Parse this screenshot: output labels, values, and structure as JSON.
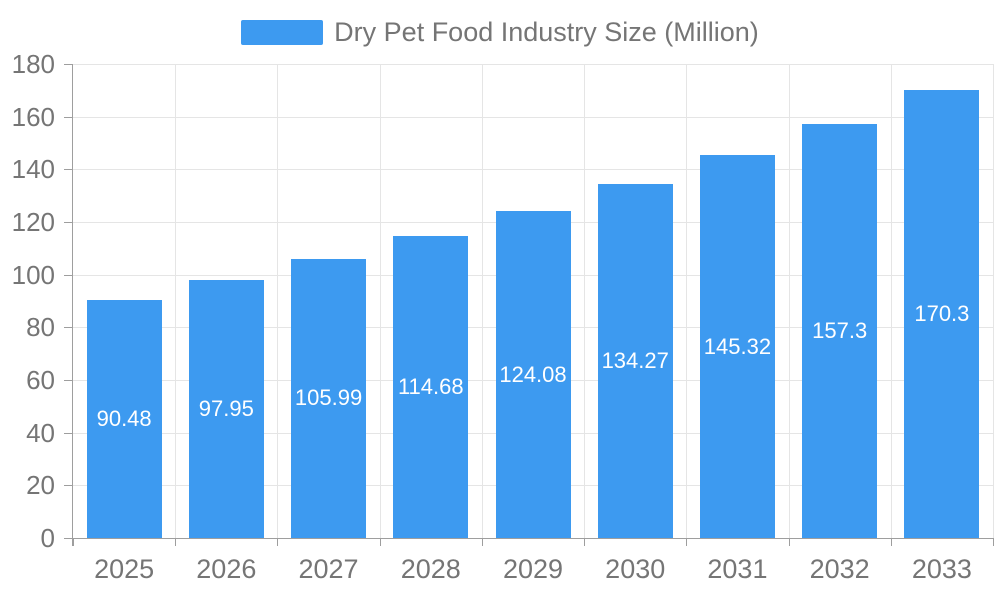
{
  "legend": {
    "label": "Dry Pet Food Industry Size (Million)"
  },
  "chart_data": {
    "type": "bar",
    "title": "Dry Pet Food Industry Size (Million)",
    "series_name": "Dry Pet Food Industry Size (Million)",
    "categories": [
      "2025",
      "2026",
      "2027",
      "2028",
      "2029",
      "2030",
      "2031",
      "2032",
      "2033"
    ],
    "values": [
      90.48,
      97.95,
      105.99,
      114.68,
      124.08,
      134.27,
      145.32,
      157.3,
      170.3
    ],
    "value_labels": [
      "90.48",
      "97.95",
      "105.99",
      "114.68",
      "124.08",
      "134.27",
      "145.32",
      "157.3",
      "170.3"
    ],
    "xlabel": "",
    "ylabel": "",
    "ylim": [
      0,
      180
    ],
    "y_ticks": [
      "0",
      "20",
      "40",
      "60",
      "80",
      "100",
      "120",
      "140",
      "160",
      "180"
    ],
    "grid": true,
    "legend_position": "top"
  },
  "colors": {
    "bar": "#3D9AF0",
    "grid": "#E5E5E5",
    "axis": "#9E9E9E",
    "axis_text": "#757575",
    "value_label_text": "#FFFFFF",
    "background": "#FFFFFF"
  }
}
